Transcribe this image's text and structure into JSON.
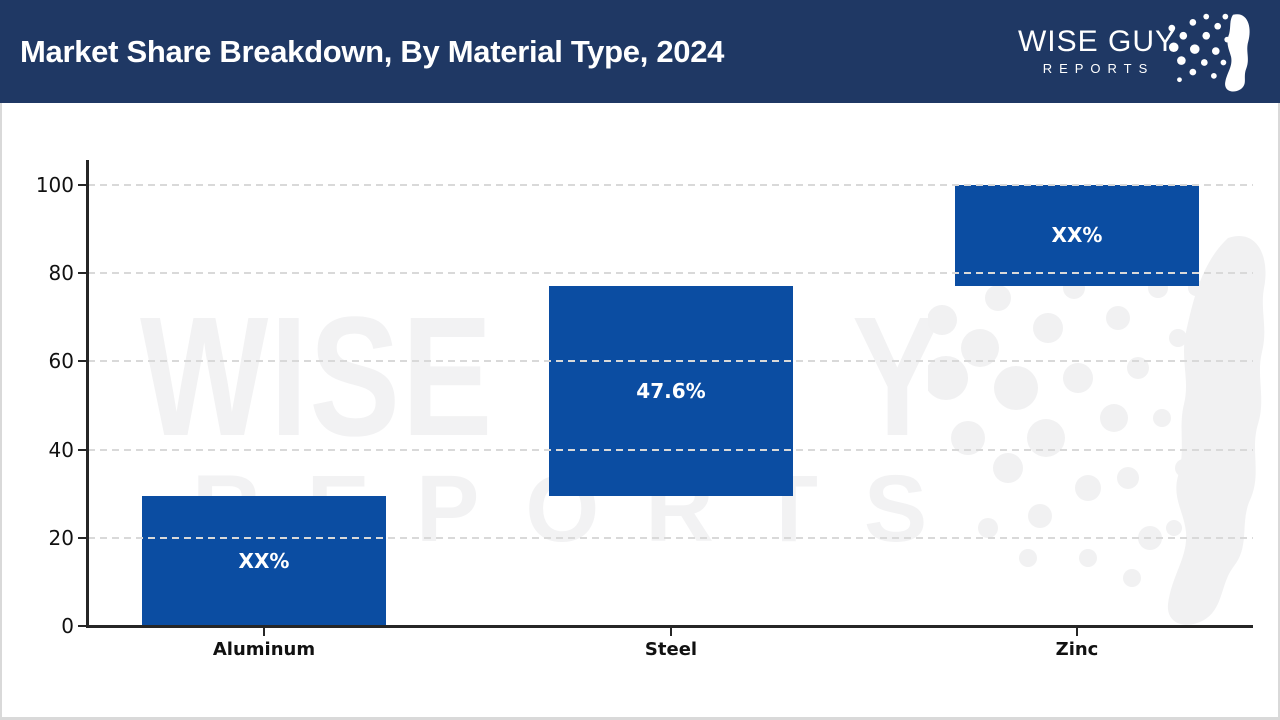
{
  "header": {
    "title": "Market Share Breakdown, By Material Type, 2024",
    "background_color": "#1f3864",
    "logo": {
      "name": "WISE GUY",
      "subname": "REPORTS"
    }
  },
  "watermark": {
    "word1": "WISE",
    "word2": "GU",
    "word3": "Y",
    "line2": "REPORTS"
  },
  "chart_data": {
    "type": "bar",
    "subtype": "floating-segment-bars (waterfall-style, segments sum to 100%)",
    "title": "Market Share Breakdown, By Material Type, 2024",
    "categories": [
      "Aluminum",
      "Steel",
      "Zinc"
    ],
    "segments": [
      {
        "category": "Aluminum",
        "start": 0,
        "end": 29.5,
        "label": "XX%"
      },
      {
        "category": "Steel",
        "start": 29.5,
        "end": 77.1,
        "label": "47.6%"
      },
      {
        "category": "Zinc",
        "start": 77.1,
        "end": 100,
        "label": "XX%"
      }
    ],
    "ylim": [
      0,
      100
    ],
    "yticks": [
      0,
      20,
      40,
      60,
      80,
      100
    ],
    "xlabel": "",
    "ylabel": "",
    "grid": "horizontal dashed, drawn over bars",
    "legend": "none",
    "colors": {
      "bar": "#0b4da2",
      "bar_label": "#ffffff",
      "grid": "#d9d9d9",
      "axis": "#262626",
      "tick_label": "#111111"
    }
  }
}
